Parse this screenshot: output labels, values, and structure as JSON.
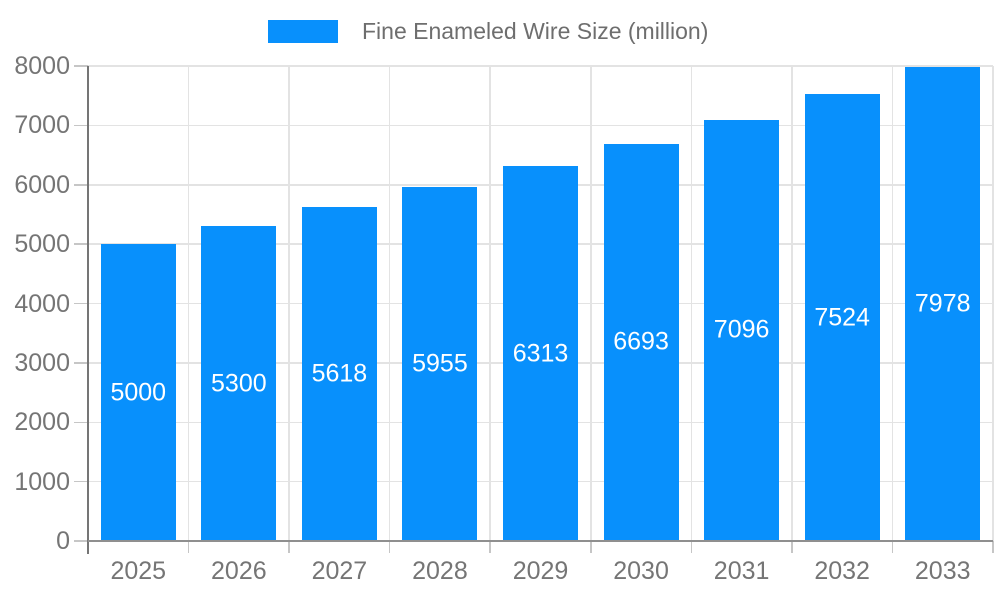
{
  "chart_data": {
    "type": "bar",
    "title": "Fine Enameled Wire Size (million)",
    "legend_entries": [
      "Fine Enameled Wire Size (million)"
    ],
    "legend_position": "top",
    "categories": [
      "2025",
      "2026",
      "2027",
      "2028",
      "2029",
      "2030",
      "2031",
      "2032",
      "2033"
    ],
    "series": [
      {
        "name": "Fine Enameled Wire Size (million)",
        "values": [
          5000,
          5300,
          5618,
          5955,
          6313,
          6693,
          7096,
          7524,
          7978
        ]
      }
    ],
    "value_labels": "inside-center",
    "xlabel": "",
    "ylabel": "",
    "ylim": [
      0,
      8000
    ],
    "ytick_step": 1000,
    "yticks": [
      0,
      1000,
      2000,
      3000,
      4000,
      5000,
      6000,
      7000,
      8000
    ],
    "grid": true,
    "colors": {
      "bar": "#0890fc",
      "value_label": "#ffffff",
      "axis_label": "#757575",
      "legend_label": "#6e6e6e",
      "gridline": "#e3e3e3",
      "x_axis_line": "#8f8f8f",
      "y_axis_line": "#757575",
      "tick": "#c6c6c6",
      "background": "#ffffff"
    }
  }
}
